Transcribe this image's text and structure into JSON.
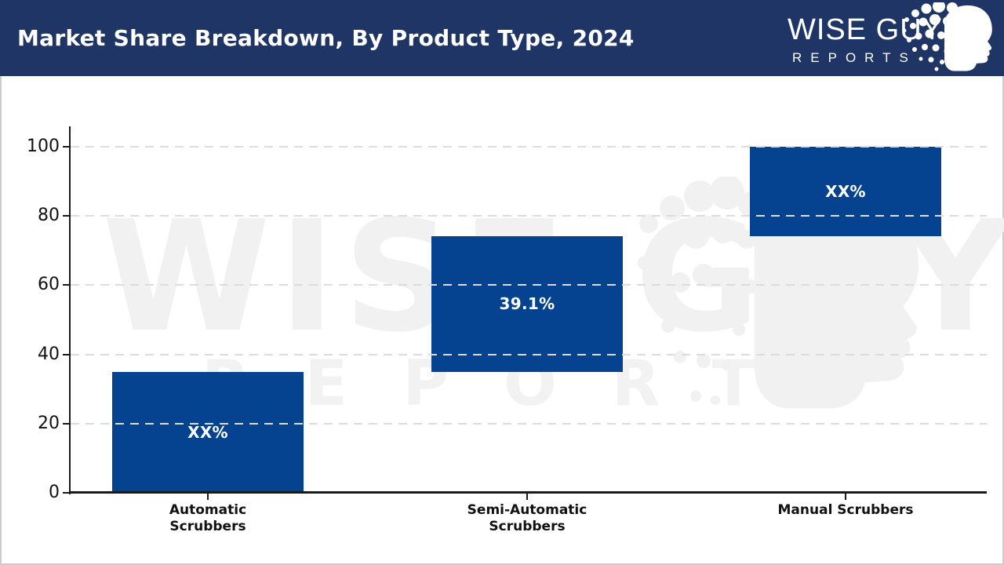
{
  "header": {
    "title": "Market Share Breakdown, By Product Type, 2024"
  },
  "logo": {
    "name": "WISE GUY",
    "tagline": "REPORTS"
  },
  "watermark": {
    "line1": "WISE GUY",
    "line2": "REPORTS"
  },
  "chart_data": {
    "type": "bar",
    "subtype": "waterfall",
    "title": "Market Share Breakdown, By Product Type, 2024",
    "xlabel": "",
    "ylabel": "",
    "ylim": [
      0,
      100
    ],
    "yticks": [
      0,
      20,
      40,
      60,
      80,
      100
    ],
    "grid": "horizontal-dashed",
    "legend": "none",
    "bar_color": "#05428f",
    "categories": [
      "Automatic\nScrubbers",
      "Semi-Automatic\nScrubbers",
      "Manual Scrubbers"
    ],
    "segments": [
      {
        "category": "Automatic Scrubbers",
        "start": 0,
        "end": 35,
        "label": "XX%"
      },
      {
        "category": "Semi-Automatic Scrubbers",
        "start": 35,
        "end": 74.1,
        "label": "39.1%"
      },
      {
        "category": "Manual Scrubbers",
        "start": 74.1,
        "end": 100,
        "label": "XX%"
      }
    ]
  },
  "colors": {
    "header_bg": "#1f3565",
    "bar": "#05428f",
    "gridline": "#dcdcdc",
    "axis": "#1a1a1a",
    "watermark": "#f1f1f1",
    "page_border": "#cccccc"
  }
}
